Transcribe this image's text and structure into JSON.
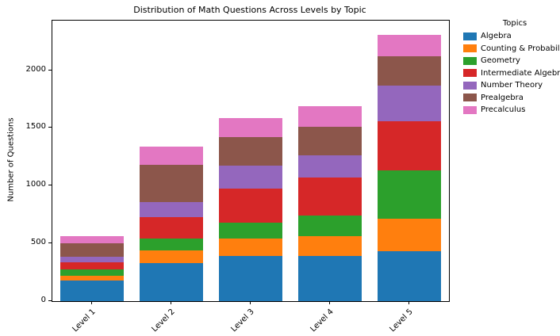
{
  "chart_data": {
    "type": "bar",
    "stacked": true,
    "title": "Distribution of Math Questions Across Levels by Topic",
    "xlabel": "",
    "ylabel": "Number of Questions",
    "legend_title": "Topics",
    "legend_position": "outside upper right",
    "grid": false,
    "categories": [
      "Level 1",
      "Level 2",
      "Level 3",
      "Level 4",
      "Level 5"
    ],
    "yticks": [
      0,
      500,
      1000,
      1500,
      2000
    ],
    "ylim": [
      0,
      2430
    ],
    "xticklabel_rotation": 45,
    "series": [
      {
        "name": "Algebra",
        "color": "#1f77b4",
        "values": [
          178,
          330,
          392,
          392,
          433
        ]
      },
      {
        "name": "Counting & Probability",
        "color": "#ff7f0e",
        "values": [
          42,
          110,
          151,
          171,
          281
        ]
      },
      {
        "name": "Geometry",
        "color": "#2ca02c",
        "values": [
          55,
          103,
          137,
          179,
          419
        ]
      },
      {
        "name": "Intermediate Algebra",
        "color": "#d62728",
        "values": [
          62,
          185,
          296,
          330,
          426
        ]
      },
      {
        "name": "Number Theory",
        "color": "#9467bd",
        "values": [
          48,
          131,
          199,
          192,
          309
        ]
      },
      {
        "name": "Prealgebra",
        "color": "#8c564b",
        "values": [
          117,
          323,
          247,
          247,
          255
        ]
      },
      {
        "name": "Precalculus",
        "color": "#e377c2",
        "values": [
          61,
          158,
          165,
          179,
          185
        ]
      }
    ],
    "totals": [
      563,
      1340,
      1587,
      1690,
      2308
    ]
  }
}
